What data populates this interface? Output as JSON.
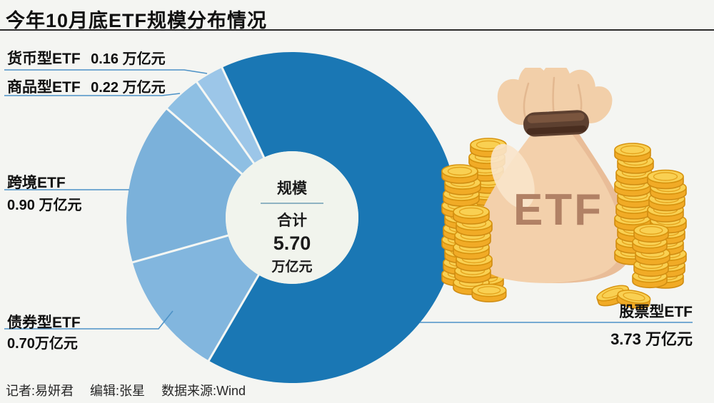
{
  "title": "今年10月底ETF规模分布情况",
  "chart_data": {
    "type": "pie",
    "subtype": "donut",
    "title": "今年10月底ETF规模分布情况",
    "unit": "万亿元",
    "total": {
      "label_top": "规模",
      "label_bottom": "合计",
      "value": "5.70",
      "unit": "万亿元"
    },
    "start_angle_deg": -25,
    "inner_radius_ratio": 0.4,
    "legend_position": "callout-labels",
    "grid": false,
    "slices": [
      {
        "name": "股票型ETF",
        "value": 3.73,
        "value_text": "3.73 万亿元",
        "color": "#1a77b4"
      },
      {
        "name": "债券型ETF",
        "value": 0.7,
        "value_text": "0.70万亿元",
        "color": "#82b6de"
      },
      {
        "name": "跨境ETF",
        "value": 0.9,
        "value_text": "0.90 万亿元",
        "color": "#7bb1da"
      },
      {
        "name": "商品型ETF",
        "value": 0.22,
        "value_text": "0.22 万亿元",
        "color": "#8ebfe3"
      },
      {
        "name": "货币型ETF",
        "value": 0.16,
        "value_text": "0.16 万亿元",
        "color": "#9cc6e8"
      }
    ]
  },
  "illustration": {
    "bag_label": "ETF",
    "bag_color": "#f3d0ab",
    "bag_shade_color": "#e9bd98",
    "ruffle_color": "#f2cfa9",
    "tie_color": "#5d4030",
    "etf_text_color": "#b18165",
    "coin_face_color": "#f9d052",
    "coin_side_color": "#f1ab26",
    "coin_outline_color": "#cf8c12"
  },
  "colors": {
    "background": "#f4f5f2",
    "leader_line": "#4d92c7",
    "title_rule": "#2a2a2a",
    "center_circle": "#f1f4ed",
    "center_divider": "#8fb3c2",
    "separator": "#f5f7f4"
  },
  "footer": {
    "reporter": "记者:易妍君",
    "editor": "编辑:张星",
    "source": "数据来源:Wind"
  }
}
